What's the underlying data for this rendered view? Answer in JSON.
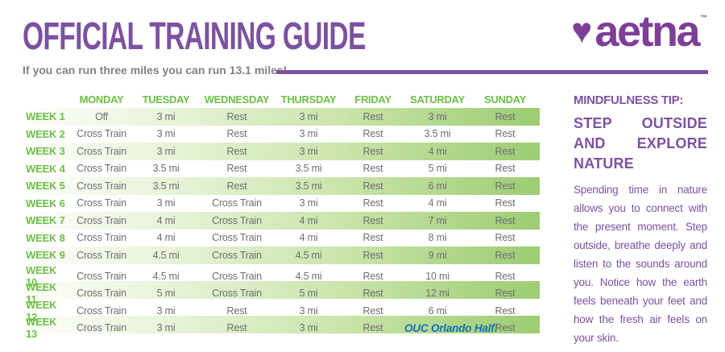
{
  "header": {
    "title": "OFFICIAL TRAINING GUIDE",
    "subtitle": "If you can run three miles you can run 13.1 miles!",
    "brand": {
      "heart_icon": "♥",
      "name": "aetna",
      "trademark": "™"
    }
  },
  "colors": {
    "purple": "#7c52a0",
    "brand_purple": "#7d3f98",
    "green": "#6cbf45",
    "row_green": "#9dcc71",
    "cell_gray": "#6d6e71",
    "subtitle_gray": "#808285",
    "race_blue": "#1272b6"
  },
  "schedule": {
    "days": [
      "MONDAY",
      "TUESDAY",
      "WEDNESDAY",
      "THURSDAY",
      "FRIDAY",
      "SATURDAY",
      "SUNDAY"
    ],
    "race_label": "OUC Orlando Half!",
    "weeks": [
      {
        "label": "WEEK 1",
        "cells": [
          "Off",
          "3 mi",
          "Rest",
          "3 mi",
          "Rest",
          "3 mi",
          "Rest"
        ]
      },
      {
        "label": "WEEK 2",
        "cells": [
          "Cross Train",
          "3 mi",
          "Rest",
          "3 mi",
          "Rest",
          "3.5 mi",
          "Rest"
        ]
      },
      {
        "label": "WEEK 3",
        "cells": [
          "Cross Train",
          "3 mi",
          "Rest",
          "3 mi",
          "Rest",
          "4 mi",
          "Rest"
        ]
      },
      {
        "label": "WEEK 4",
        "cells": [
          "Cross Train",
          "3.5 mi",
          "Rest",
          "3.5 mi",
          "Rest",
          "5 mi",
          "Rest"
        ]
      },
      {
        "label": "WEEK 5",
        "cells": [
          "Cross Train",
          "3.5 mi",
          "Rest",
          "3.5 mi",
          "Rest",
          "6 mi",
          "Rest"
        ]
      },
      {
        "label": "WEEK 6",
        "cells": [
          "Cross Train",
          "3 mi",
          "Cross Train",
          "3 mi",
          "Rest",
          "4 mi",
          "Rest"
        ]
      },
      {
        "label": "WEEK 7",
        "cells": [
          "Cross Train",
          "4 mi",
          "Cross Train",
          "4 mi",
          "Rest",
          "7 mi",
          "Rest"
        ]
      },
      {
        "label": "WEEK 8",
        "cells": [
          "Cross Train",
          "4 mi",
          "Cross Train",
          "4 mi",
          "Rest",
          "8 mi",
          "Rest"
        ]
      },
      {
        "label": "WEEK 9",
        "cells": [
          "Cross Train",
          "4.5 mi",
          "Cross Train",
          "4.5 mi",
          "Rest",
          "9 mi",
          "Rest"
        ]
      },
      {
        "label": "WEEK 10",
        "cells": [
          "Cross Train",
          "4.5 mi",
          "Cross Train",
          "4.5 mi",
          "Rest",
          "10 mi",
          "Rest"
        ]
      },
      {
        "label": "WEEK 11",
        "cells": [
          "Cross Train",
          "5 mi",
          "Cross Train",
          "5 mi",
          "Rest",
          "12 mi",
          "Rest"
        ]
      },
      {
        "label": "WEEK 12",
        "cells": [
          "Cross Train",
          "3 mi",
          "Rest",
          "3 mi",
          "Rest",
          "6 mi",
          "Rest"
        ]
      },
      {
        "label": "WEEK 13",
        "cells": [
          "Cross Train",
          "3 mi",
          "Rest",
          "3 mi",
          "Rest",
          "OUC Orlando Half!",
          "Rest"
        ]
      }
    ]
  },
  "sidebar": {
    "tip_label": "MINDFULNESS TIP:",
    "tip_title": "STEP OUTSIDE AND EXPLORE NATURE",
    "tip_body": "Spending time in nature allows you to connect with the present moment. Step outside, breathe deeply and listen to the sounds around you. Notice how the earth feels beneath your feet and how the fresh air feels on your skin."
  }
}
